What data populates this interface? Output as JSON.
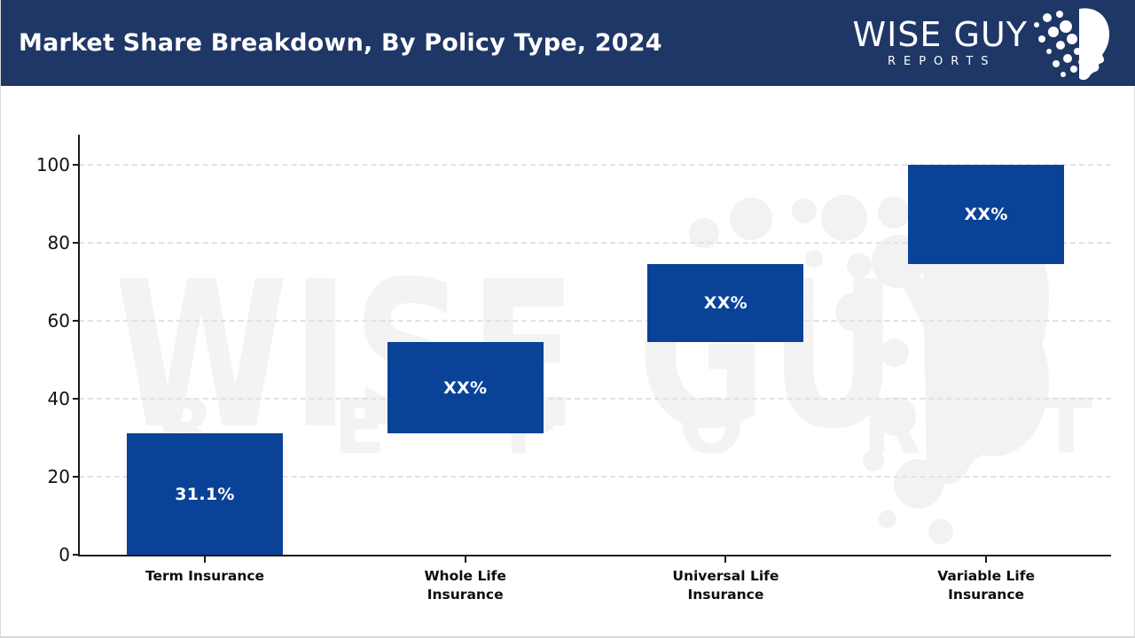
{
  "header": {
    "title": "Market Share Breakdown, By Policy Type, 2024",
    "logo": {
      "line1": "WISE GUY",
      "line2": "REPORTS"
    }
  },
  "watermark": {
    "line1": "WISE GUY",
    "line2": "REPORTS"
  },
  "chart_data": {
    "type": "waterfall",
    "title": "Market Share Breakdown, By Policy Type, 2024",
    "categories": [
      "Term Insurance",
      "Whole Life\nInsurance",
      "Universal Life\nInsurance",
      "Variable Life\nInsurance"
    ],
    "segments": [
      {
        "category": "Term Insurance",
        "start": 0,
        "end": 31.1,
        "label": "31.1%"
      },
      {
        "category": "Whole Life Insurance",
        "start": 31.1,
        "end": 54.5,
        "label": "XX%"
      },
      {
        "category": "Universal Life Insurance",
        "start": 54.5,
        "end": 74.6,
        "label": "XX%"
      },
      {
        "category": "Variable Life Insurance",
        "start": 74.6,
        "end": 100,
        "label": "XX%"
      }
    ],
    "yticks": [
      0,
      20,
      40,
      60,
      80,
      100
    ],
    "ylim": [
      0,
      107
    ],
    "xlabel": "",
    "ylabel": "",
    "grid": "horizontal-dashed",
    "legend": "none",
    "bar_color": "#0a4298",
    "value_label_color": "#ffffff"
  },
  "colors": {
    "header_bg": "#1f3766",
    "bar": "#0a4298",
    "grid": "#e2e2e2",
    "axis": "#1a1a1a",
    "watermark": "#f3f3f3"
  }
}
